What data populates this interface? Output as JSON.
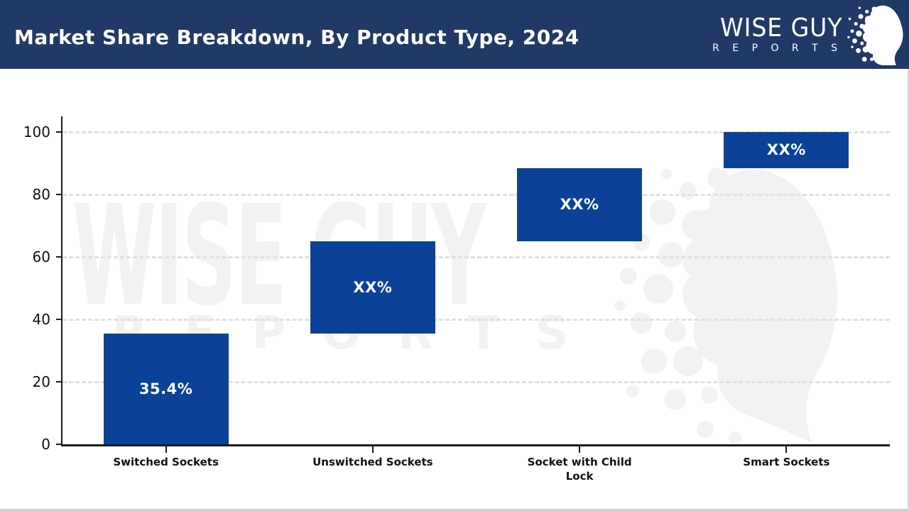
{
  "header": {
    "title": "Market Share Breakdown, By Product Type, 2024",
    "bg_color": "#213966",
    "logo": {
      "line1": "WISE GUY",
      "line2": "R E P O R T S"
    }
  },
  "watermark": {
    "line1": "WISE GUY",
    "line2": "REPORTS"
  },
  "chart_data": {
    "type": "bar",
    "subtype": "waterfall",
    "title": "Market Share Breakdown, By Product Type, 2024",
    "categories": [
      "Switched Sockets",
      "Unswitched Sockets",
      "Socket with Child Lock",
      "Smart Sockets"
    ],
    "segments": [
      {
        "category": "Switched Sockets",
        "start": 0,
        "end": 35.4,
        "label": "35.4%"
      },
      {
        "category": "Unswitched Sockets",
        "start": 35.4,
        "end": 65,
        "label": "XX%"
      },
      {
        "category": "Socket with Child Lock",
        "start": 65,
        "end": 88.5,
        "label": "XX%"
      },
      {
        "category": "Smart Sockets",
        "start": 88.5,
        "end": 100,
        "label": "XX%"
      }
    ],
    "ylim": [
      0,
      100
    ],
    "yticks": [
      0,
      20,
      40,
      60,
      80,
      100
    ],
    "grid": "dashed-horizontal",
    "legend": "none",
    "bar_color": "#0b4298",
    "bar_label_color": "#ffffff",
    "axis_color": "#1a1a1a"
  }
}
